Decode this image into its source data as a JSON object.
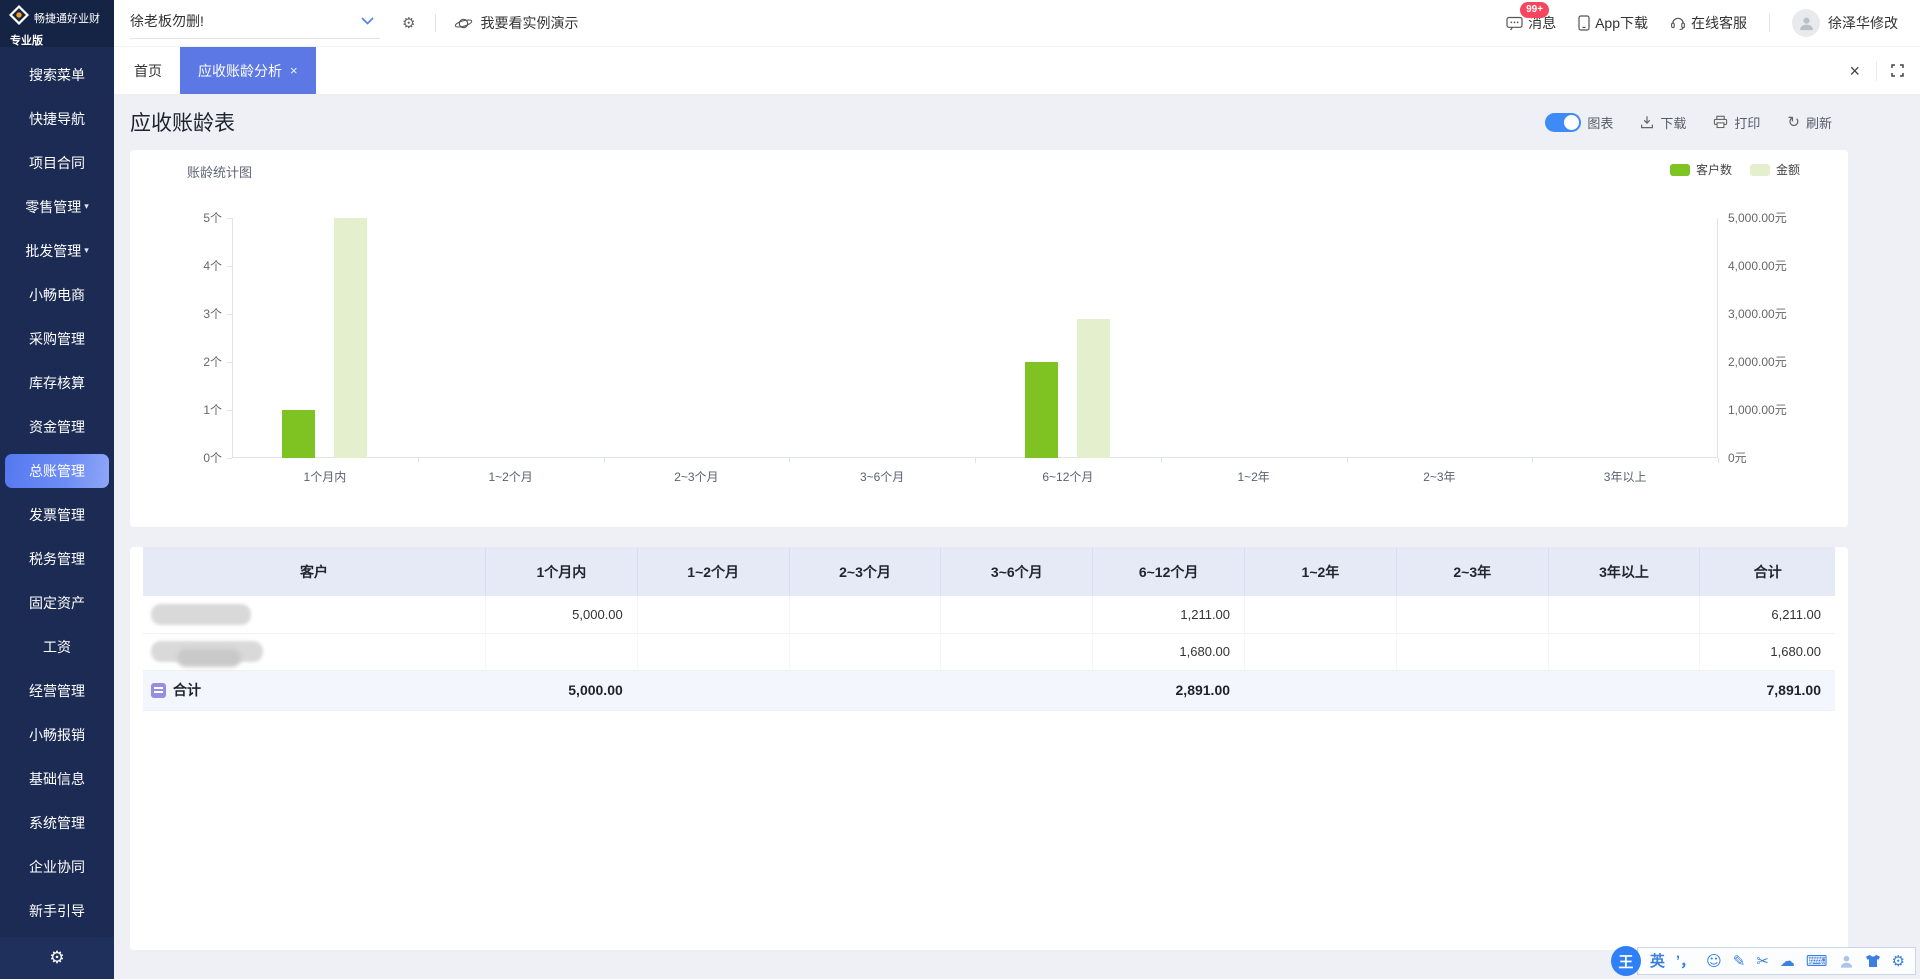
{
  "app": {
    "brand": "畅捷通好业财",
    "edition": "专业版",
    "account": "徐老板勿删!",
    "demo_link": "我要看实例演示",
    "messages_label": "消息",
    "messages_badge": "99+",
    "app_download_label": "App下载",
    "support_label": "在线客服",
    "user_name": "徐泽华修改"
  },
  "sidebar": {
    "items": [
      {
        "label": "搜索菜单",
        "active": false,
        "arrow": false
      },
      {
        "label": "快捷导航",
        "active": false,
        "arrow": false
      },
      {
        "label": "项目合同",
        "active": false,
        "arrow": false
      },
      {
        "label": "零售管理",
        "active": false,
        "arrow": true
      },
      {
        "label": "批发管理",
        "active": false,
        "arrow": true
      },
      {
        "label": "小畅电商",
        "active": false,
        "arrow": false
      },
      {
        "label": "采购管理",
        "active": false,
        "arrow": false
      },
      {
        "label": "库存核算",
        "active": false,
        "arrow": false
      },
      {
        "label": "资金管理",
        "active": false,
        "arrow": false
      },
      {
        "label": "总账管理",
        "active": true,
        "arrow": false
      },
      {
        "label": "发票管理",
        "active": false,
        "arrow": false
      },
      {
        "label": "税务管理",
        "active": false,
        "arrow": false
      },
      {
        "label": "固定资产",
        "active": false,
        "arrow": false
      },
      {
        "label": "工资",
        "active": false,
        "arrow": false
      },
      {
        "label": "经营管理",
        "active": false,
        "arrow": false
      },
      {
        "label": "小畅报销",
        "active": false,
        "arrow": false
      },
      {
        "label": "基础信息",
        "active": false,
        "arrow": false
      },
      {
        "label": "系统管理",
        "active": false,
        "arrow": false
      },
      {
        "label": "企业协同",
        "active": false,
        "arrow": false
      },
      {
        "label": "新手引导",
        "active": false,
        "arrow": false
      }
    ]
  },
  "tabs": [
    {
      "label": "首页",
      "active": false,
      "closable": false
    },
    {
      "label": "应收账龄分析",
      "active": true,
      "closable": true
    }
  ],
  "page": {
    "title": "应收账龄表",
    "controls": {
      "chart_toggle_label": "图表",
      "download_label": "下载",
      "print_label": "打印",
      "refresh_label": "刷新"
    }
  },
  "chart_data": {
    "type": "bar",
    "title": "账龄统计图",
    "categories": [
      "1个月内",
      "1~2个月",
      "2~3个月",
      "3~6个月",
      "6~12个月",
      "1~2年",
      "2~3年",
      "3年以上"
    ],
    "series": [
      {
        "name": "客户数",
        "axis": "left",
        "color": "#7ec322",
        "values": [
          1,
          0,
          0,
          0,
          2,
          0,
          0,
          0
        ]
      },
      {
        "name": "金额",
        "axis": "right",
        "color": "#e4f0cd",
        "values": [
          5000,
          0,
          0,
          0,
          2891,
          0,
          0,
          0
        ]
      }
    ],
    "left_axis": {
      "max": 5,
      "ticks": [
        "5个",
        "4个",
        "3个",
        "2个",
        "1个",
        "0个"
      ]
    },
    "right_axis": {
      "max": 5000,
      "ticks": [
        "5,000.00元",
        "4,000.00元",
        "3,000.00元",
        "2,000.00元",
        "1,000.00元",
        "0元"
      ]
    },
    "legend_position": "top-right",
    "grid": false
  },
  "table": {
    "headers": [
      "客户",
      "1个月内",
      "1~2个月",
      "2~3个月",
      "3~6个月",
      "6~12个月",
      "1~2年",
      "2~3年",
      "3年以上",
      "合计"
    ],
    "rows": [
      {
        "customer_redacted": true,
        "values": [
          "5,000.00",
          "",
          "",
          "",
          "1,211.00",
          "",
          "",
          "",
          "6,211.00"
        ]
      },
      {
        "customer_redacted": true,
        "values": [
          "",
          "",
          "",
          "",
          "1,680.00",
          "",
          "",
          "",
          "1,680.00"
        ]
      }
    ],
    "total": {
      "label": "合计",
      "values": [
        "5,000.00",
        "",
        "",
        "",
        "2,891.00",
        "",
        "",
        "",
        "7,891.00"
      ]
    }
  },
  "ime": {
    "logo_glyph": "王",
    "icons": [
      {
        "name": "english-mode-icon",
        "glyph": "英",
        "cn": true
      },
      {
        "name": "punctuation-mode-icon",
        "glyph": "ʼ，",
        "cn": true
      },
      {
        "name": "emoji-icon",
        "glyph": "☺"
      },
      {
        "name": "handwriting-icon",
        "glyph": "✎"
      },
      {
        "name": "screenshot-scissors-icon",
        "glyph": "✂"
      },
      {
        "name": "cloud-sync-icon",
        "glyph": "☁"
      },
      {
        "name": "virtual-keyboard-icon",
        "glyph": "⌨"
      },
      {
        "name": "user-account-icon",
        "glyph": "svg-person"
      },
      {
        "name": "skin-shirt-icon",
        "glyph": "svg-shirt"
      },
      {
        "name": "ime-settings-icon",
        "glyph": "⚙"
      }
    ]
  },
  "colors": {
    "sidebar_bg": "#1b2b53",
    "active_menu": "#5b7cf0",
    "active_tab": "#5b78e4",
    "toggle_on": "#3e8bf7",
    "series_customers": "#7ec322",
    "series_amount": "#e4f0cd",
    "badge_red": "#f5465d",
    "table_header_bg": "#e6eaf6",
    "total_row_bg": "#f3f7fd"
  }
}
